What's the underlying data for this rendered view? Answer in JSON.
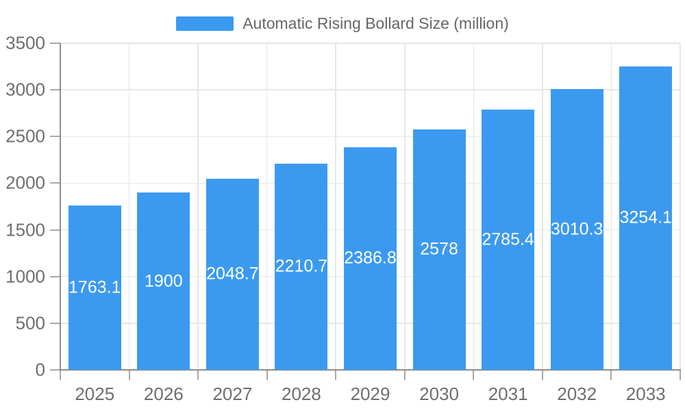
{
  "legend": {
    "label": "Automatic Rising Bollard Size (million)"
  },
  "colors": {
    "bar": "#3B9AEF",
    "axis_line": "#8E8E8E",
    "tick_mark": "#A8A8A8",
    "grid_line": "#E6E6E6",
    "axis_label": "#6E6E6E",
    "value_label": "#FFFFFF",
    "legend_text": "#666666",
    "background": "#FFFFFF"
  },
  "chart_data": {
    "type": "bar",
    "title": "Automatic Rising Bollard Size (million)",
    "categories": [
      "2025",
      "2026",
      "2027",
      "2028",
      "2029",
      "2030",
      "2031",
      "2032",
      "2033"
    ],
    "series": [
      {
        "name": "Automatic Rising Bollard Size (million)",
        "values": [
          1763.1,
          1900,
          2048.7,
          2210.7,
          2386.8,
          2578,
          2785.4,
          3010.3,
          3254.1
        ]
      }
    ],
    "value_labels": [
      "1763.1",
      "1900",
      "2048.7",
      "2210.7",
      "2386.8",
      "2578",
      "2785.4",
      "3010.3",
      "3254.1"
    ],
    "value_label_position": "inside-center",
    "xlabel": "",
    "ylabel": "",
    "ylim": [
      0,
      3500
    ],
    "yticks": [
      0,
      500,
      1000,
      1500,
      2000,
      2500,
      3000,
      3500
    ],
    "grid": true,
    "legend_position": "top-center"
  }
}
